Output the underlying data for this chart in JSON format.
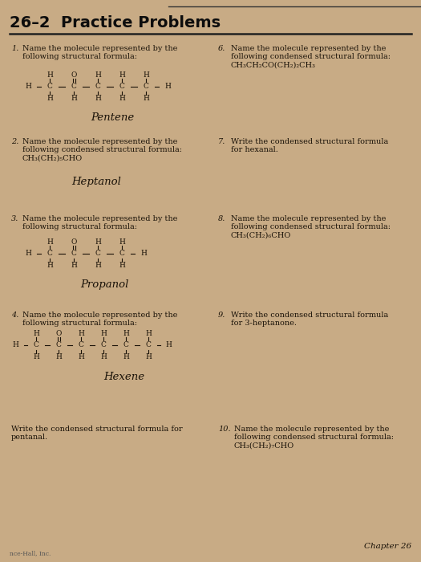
{
  "title": "26–2  Practice Problems",
  "page_bg": "#c8ab85",
  "text_color": "#1a1208",
  "header_color": "#0d0d0d",
  "chapter_label": "Chapter 26",
  "publisher": "nce-Hall, Inc.",
  "q1_text": "Name the molecule represented by the\nfollowing structural formula:",
  "q1_answer": "Pentene",
  "q2_text": "Name the molecule represented by the\nfollowing condensed structural formula:\nCH₃(CH₂)₅CHO",
  "q2_answer": "Heptanol",
  "q3_text": "Name the molecule represented by the\nfollowing structural formula:",
  "q3_answer": "Propanol",
  "q4_text": "Name the molecule represented by the\nfollowing structural formula:",
  "q4_answer": "Hexene",
  "q5_text": "Write the condensed structural formula for\npentanal.",
  "q6_text": "Name the molecule represented by the\nfollowing condensed structural formula:\nCH₃CH₂CO(CH₂)₂CH₃",
  "q7_text": "Write the condensed structural formula\nfor hexanal.",
  "q8_text": "Name the molecule represented by the\nfollowing condensed structural formula:\nCH₃(CH₂)₆CHO",
  "q9_text": "Write the condensed structural formula\nfor 3-heptanone.",
  "q10_text": "Name the molecule represented by the\nfollowing condensed structural formula:\nCH₃(CH₂)₇CHO"
}
